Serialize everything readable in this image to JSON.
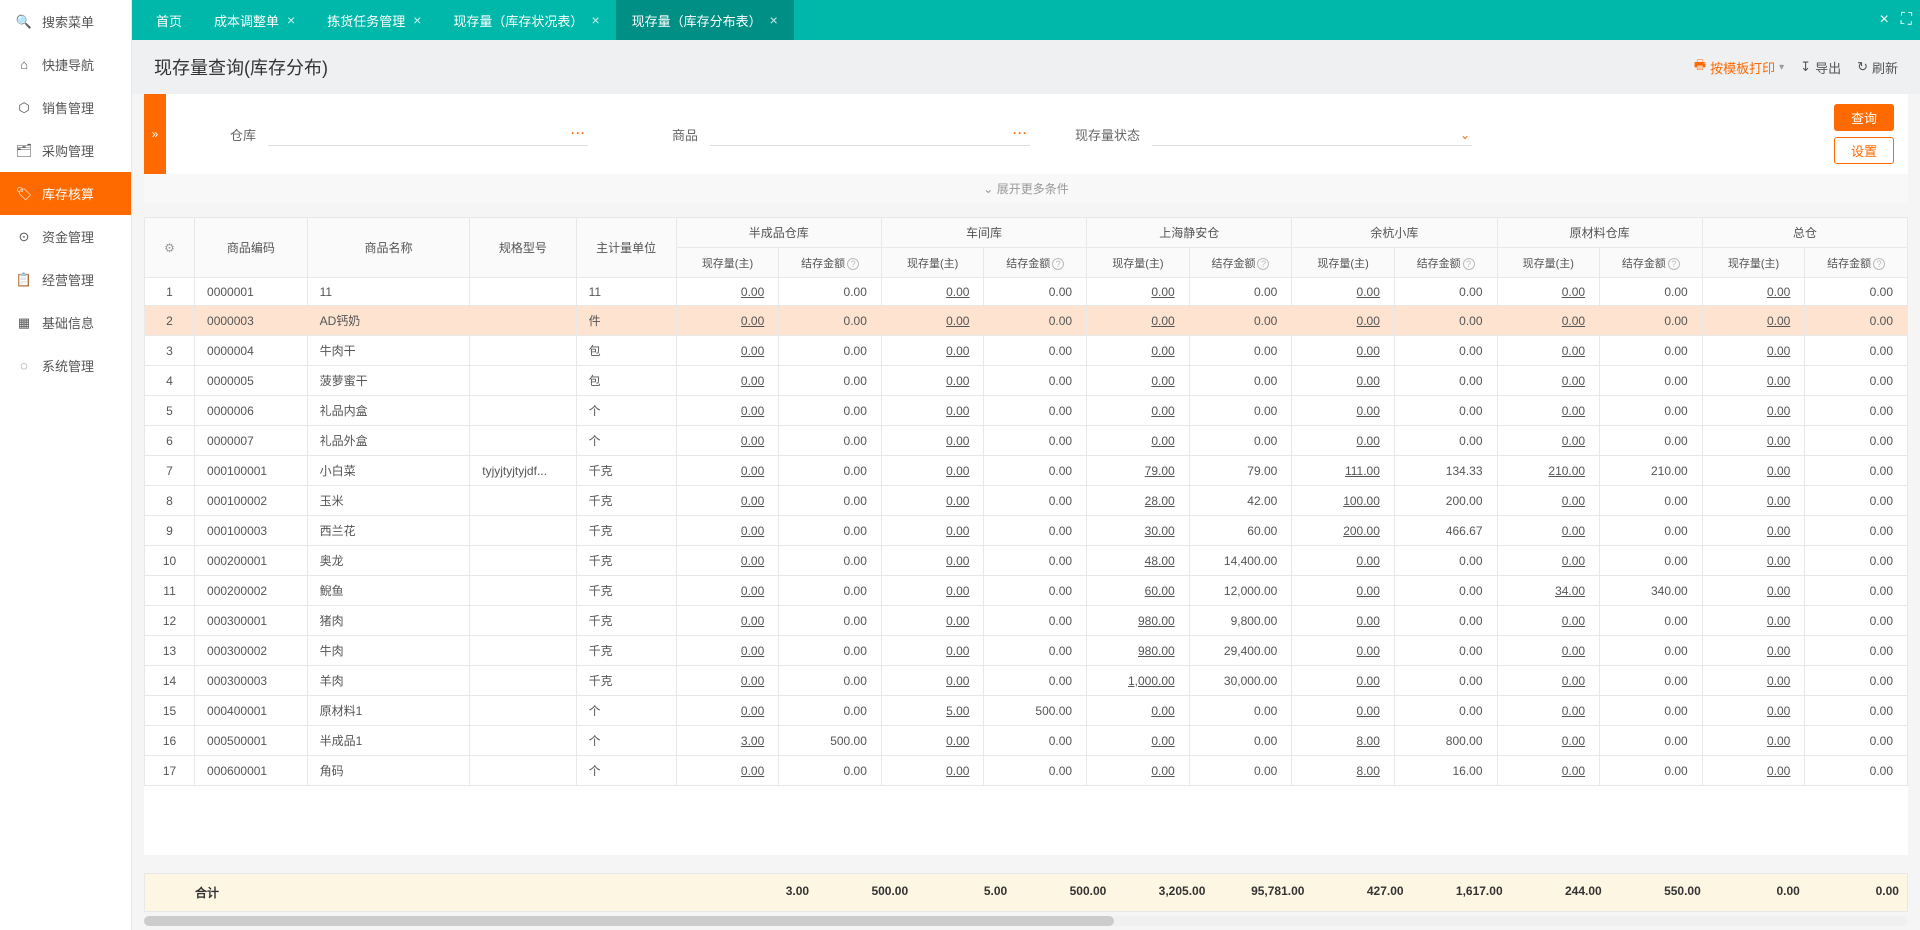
{
  "sidebar": {
    "items": [
      {
        "icon": "🔍",
        "label": "搜索菜单"
      },
      {
        "icon": "⌂",
        "label": "快捷导航"
      },
      {
        "icon": "⬡",
        "label": "销售管理"
      },
      {
        "icon": "🗂",
        "label": "采购管理"
      },
      {
        "icon": "🏷",
        "label": "库存核算",
        "active": true
      },
      {
        "icon": "⊙",
        "label": "资金管理"
      },
      {
        "icon": "📋",
        "label": "经营管理"
      },
      {
        "icon": "▦",
        "label": "基础信息"
      },
      {
        "icon": "◌",
        "label": "系统管理"
      }
    ]
  },
  "tabs": {
    "items": [
      {
        "label": "首页",
        "closable": false
      },
      {
        "label": "成本调整单",
        "closable": true
      },
      {
        "label": "拣货任务管理",
        "closable": true
      },
      {
        "label": "现存量（库存状况表）",
        "closable": true
      },
      {
        "label": "现存量（库存分布表）",
        "closable": true,
        "active": true
      }
    ]
  },
  "header": {
    "title": "现存量查询(库存分布)",
    "print": "按模板打印",
    "export": "导出",
    "refresh": "刷新"
  },
  "search": {
    "warehouse": "仓库",
    "product": "商品",
    "status": "现存量状态",
    "query": "查询",
    "setting": "设置",
    "expand": "展开更多条件"
  },
  "table": {
    "colGroups": [
      "半成品仓库",
      "车间库",
      "上海静安仓",
      "余杭小库",
      "原材料仓库",
      "总仓"
    ],
    "cols": {
      "code": "商品编码",
      "name": "商品名称",
      "spec": "规格型号",
      "unit": "主计量单位",
      "qty": "现存量(主)",
      "amt": "结存金额"
    },
    "rows": [
      {
        "i": 1,
        "code": "0000001",
        "name": "11",
        "spec": "",
        "unit": "11",
        "v": [
          "0.00",
          "0.00",
          "0.00",
          "0.00",
          "0.00",
          "0.00",
          "0.00",
          "0.00",
          "0.00",
          "0.00",
          "0.00",
          "0.00"
        ]
      },
      {
        "i": 2,
        "code": "0000003",
        "name": "AD钙奶",
        "spec": "",
        "unit": "件",
        "hl": true,
        "v": [
          "0.00",
          "0.00",
          "0.00",
          "0.00",
          "0.00",
          "0.00",
          "0.00",
          "0.00",
          "0.00",
          "0.00",
          "0.00",
          "0.00"
        ]
      },
      {
        "i": 3,
        "code": "0000004",
        "name": "牛肉干",
        "spec": "",
        "unit": "包",
        "v": [
          "0.00",
          "0.00",
          "0.00",
          "0.00",
          "0.00",
          "0.00",
          "0.00",
          "0.00",
          "0.00",
          "0.00",
          "0.00",
          "0.00"
        ]
      },
      {
        "i": 4,
        "code": "0000005",
        "name": "菠萝蜜干",
        "spec": "",
        "unit": "包",
        "v": [
          "0.00",
          "0.00",
          "0.00",
          "0.00",
          "0.00",
          "0.00",
          "0.00",
          "0.00",
          "0.00",
          "0.00",
          "0.00",
          "0.00"
        ]
      },
      {
        "i": 5,
        "code": "0000006",
        "name": "礼品内盒",
        "spec": "",
        "unit": "个",
        "v": [
          "0.00",
          "0.00",
          "0.00",
          "0.00",
          "0.00",
          "0.00",
          "0.00",
          "0.00",
          "0.00",
          "0.00",
          "0.00",
          "0.00"
        ]
      },
      {
        "i": 6,
        "code": "0000007",
        "name": "礼品外盒",
        "spec": "",
        "unit": "个",
        "v": [
          "0.00",
          "0.00",
          "0.00",
          "0.00",
          "0.00",
          "0.00",
          "0.00",
          "0.00",
          "0.00",
          "0.00",
          "0.00",
          "0.00"
        ]
      },
      {
        "i": 7,
        "code": "000100001",
        "name": "小白菜",
        "spec": "tyjyjtyjtyjdf...",
        "unit": "千克",
        "v": [
          "0.00",
          "0.00",
          "0.00",
          "0.00",
          "79.00",
          "79.00",
          "111.00",
          "134.33",
          "210.00",
          "210.00",
          "0.00",
          "0.00"
        ]
      },
      {
        "i": 8,
        "code": "000100002",
        "name": "玉米",
        "spec": "",
        "unit": "千克",
        "v": [
          "0.00",
          "0.00",
          "0.00",
          "0.00",
          "28.00",
          "42.00",
          "100.00",
          "200.00",
          "0.00",
          "0.00",
          "0.00",
          "0.00"
        ]
      },
      {
        "i": 9,
        "code": "000100003",
        "name": "西兰花",
        "spec": "",
        "unit": "千克",
        "v": [
          "0.00",
          "0.00",
          "0.00",
          "0.00",
          "30.00",
          "60.00",
          "200.00",
          "466.67",
          "0.00",
          "0.00",
          "0.00",
          "0.00"
        ]
      },
      {
        "i": 10,
        "code": "000200001",
        "name": "奥龙",
        "spec": "",
        "unit": "千克",
        "v": [
          "0.00",
          "0.00",
          "0.00",
          "0.00",
          "48.00",
          "14,400.00",
          "0.00",
          "0.00",
          "0.00",
          "0.00",
          "0.00",
          "0.00"
        ]
      },
      {
        "i": 11,
        "code": "000200002",
        "name": "鲵鱼",
        "spec": "",
        "unit": "千克",
        "v": [
          "0.00",
          "0.00",
          "0.00",
          "0.00",
          "60.00",
          "12,000.00",
          "0.00",
          "0.00",
          "34.00",
          "340.00",
          "0.00",
          "0.00"
        ]
      },
      {
        "i": 12,
        "code": "000300001",
        "name": "猪肉",
        "spec": "",
        "unit": "千克",
        "v": [
          "0.00",
          "0.00",
          "0.00",
          "0.00",
          "980.00",
          "9,800.00",
          "0.00",
          "0.00",
          "0.00",
          "0.00",
          "0.00",
          "0.00"
        ]
      },
      {
        "i": 13,
        "code": "000300002",
        "name": "牛肉",
        "spec": "",
        "unit": "千克",
        "v": [
          "0.00",
          "0.00",
          "0.00",
          "0.00",
          "980.00",
          "29,400.00",
          "0.00",
          "0.00",
          "0.00",
          "0.00",
          "0.00",
          "0.00"
        ]
      },
      {
        "i": 14,
        "code": "000300003",
        "name": "羊肉",
        "spec": "",
        "unit": "千克",
        "v": [
          "0.00",
          "0.00",
          "0.00",
          "0.00",
          "1,000.00",
          "30,000.00",
          "0.00",
          "0.00",
          "0.00",
          "0.00",
          "0.00",
          "0.00"
        ]
      },
      {
        "i": 15,
        "code": "000400001",
        "name": "原材料1",
        "spec": "",
        "unit": "个",
        "v": [
          "0.00",
          "0.00",
          "5.00",
          "500.00",
          "0.00",
          "0.00",
          "0.00",
          "0.00",
          "0.00",
          "0.00",
          "0.00",
          "0.00"
        ]
      },
      {
        "i": 16,
        "code": "000500001",
        "name": "半成品1",
        "spec": "",
        "unit": "个",
        "v": [
          "3.00",
          "500.00",
          "0.00",
          "0.00",
          "0.00",
          "0.00",
          "8.00",
          "800.00",
          "0.00",
          "0.00",
          "0.00",
          "0.00"
        ]
      },
      {
        "i": 17,
        "code": "000600001",
        "name": "角码",
        "spec": "",
        "unit": "个",
        "v": [
          "0.00",
          "0.00",
          "0.00",
          "0.00",
          "0.00",
          "0.00",
          "8.00",
          "16.00",
          "0.00",
          "0.00",
          "0.00",
          "0.00"
        ]
      }
    ],
    "footer": {
      "label": "合计",
      "v": [
        "3.00",
        "500.00",
        "5.00",
        "500.00",
        "3,205.00",
        "95,781.00",
        "427.00",
        "1,617.00",
        "244.00",
        "550.00",
        "0.00",
        "0.00"
      ]
    }
  }
}
